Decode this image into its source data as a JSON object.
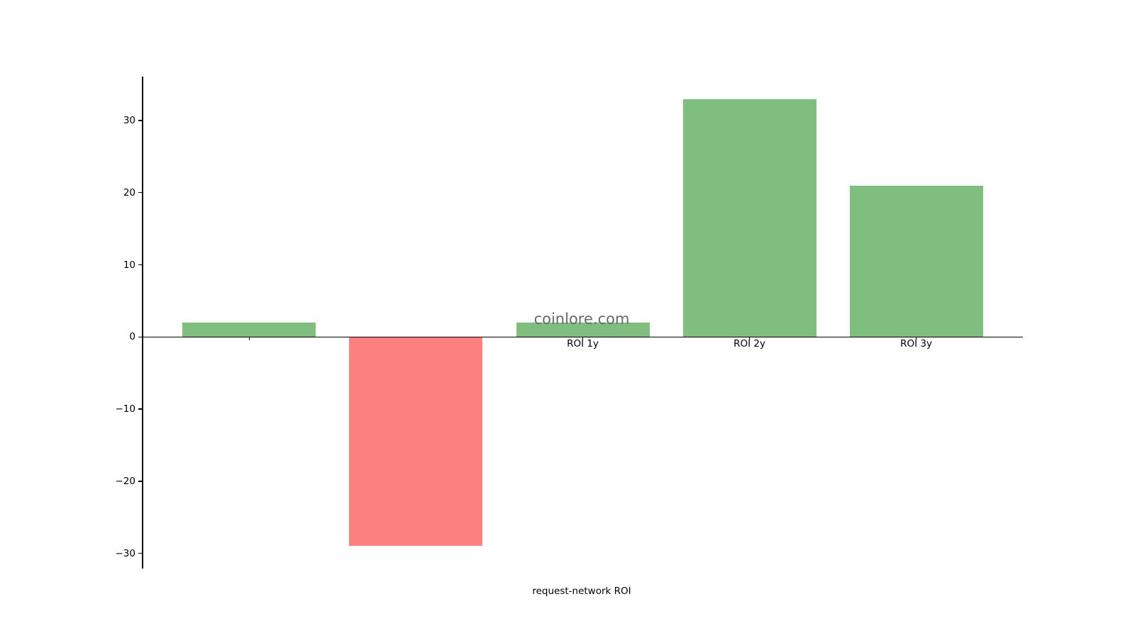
{
  "chart_data": {
    "type": "bar",
    "title": "",
    "xlabel": "request-network ROI",
    "ylabel": "",
    "watermark": "coinlore.com",
    "categories": [
      "",
      "",
      "ROI 1y",
      "ROI 2y",
      "ROI 3y"
    ],
    "values": [
      2,
      -29,
      2,
      33,
      21
    ],
    "series": [
      {
        "name": "ROI",
        "values": [
          2,
          -29,
          2,
          33,
          21
        ]
      }
    ],
    "yticks": [
      30,
      20,
      10,
      0,
      -10,
      -20,
      -30
    ],
    "ytick_labels": [
      "30",
      "20",
      "10",
      "0",
      "−10",
      "−20",
      "−30"
    ],
    "ylim": [
      -32.1,
      36.1
    ],
    "grid": false,
    "legend": false,
    "colors": {
      "positive_bar": "#7fbe7f",
      "negative_bar": "#fd8080",
      "axis": "#000000",
      "tick_text": "#000000",
      "watermark_text": "#696969"
    }
  }
}
